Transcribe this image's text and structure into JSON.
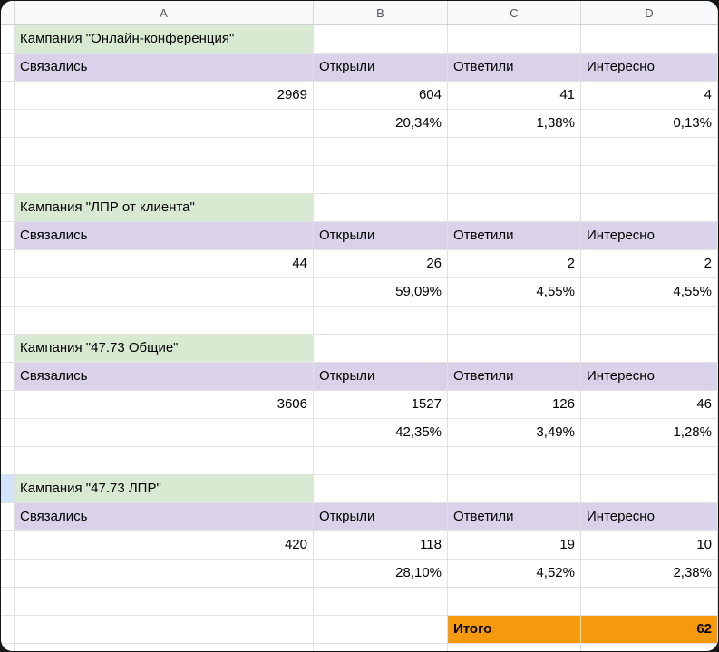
{
  "column_headers": [
    "A",
    "B",
    "C",
    "D"
  ],
  "colors": {
    "green": "#d9ead3",
    "lavender": "#d9d2e9",
    "orange": "#f6990d",
    "header_bg": "#f8f9fa",
    "grid_line": "#e2e2e2",
    "gutter_highlight": "#d2e3fc"
  },
  "rows": [
    {
      "cells": [
        {
          "t": "Кампания \"Онлайн-конференция\"",
          "bg": "green",
          "name": "campaign-title-cell"
        },
        {},
        {},
        {}
      ]
    },
    {
      "cells": [
        {
          "t": "Связались",
          "bg": "lavender",
          "name": "metric-header-cell"
        },
        {
          "t": "Открыли",
          "bg": "lavender",
          "name": "metric-header-cell"
        },
        {
          "t": "Ответили",
          "bg": "lavender",
          "name": "metric-header-cell"
        },
        {
          "t": "Интересно",
          "bg": "lavender",
          "name": "metric-header-cell"
        }
      ]
    },
    {
      "cells": [
        {
          "t": "2969",
          "align": "right",
          "name": "metric-value-cell"
        },
        {
          "t": "604",
          "align": "right",
          "name": "metric-value-cell"
        },
        {
          "t": "41",
          "align": "right",
          "name": "metric-value-cell"
        },
        {
          "t": "4",
          "align": "right",
          "name": "metric-value-cell"
        }
      ]
    },
    {
      "cells": [
        {},
        {
          "t": "20,34%",
          "align": "right",
          "name": "metric-percent-cell"
        },
        {
          "t": "1,38%",
          "align": "right",
          "name": "metric-percent-cell"
        },
        {
          "t": "0,13%",
          "align": "right",
          "name": "metric-percent-cell"
        }
      ]
    },
    {
      "cells": [
        {},
        {},
        {},
        {}
      ]
    },
    {
      "cells": [
        {},
        {},
        {},
        {}
      ]
    },
    {
      "cells": [
        {
          "t": "Кампания \"ЛПР от клиента\"",
          "bg": "green",
          "name": "campaign-title-cell"
        },
        {},
        {},
        {}
      ]
    },
    {
      "cells": [
        {
          "t": "Связались",
          "bg": "lavender",
          "name": "metric-header-cell"
        },
        {
          "t": "Открыли",
          "bg": "lavender",
          "name": "metric-header-cell"
        },
        {
          "t": "Ответили",
          "bg": "lavender",
          "name": "metric-header-cell"
        },
        {
          "t": "Интересно",
          "bg": "lavender",
          "name": "metric-header-cell"
        }
      ]
    },
    {
      "cells": [
        {
          "t": "44",
          "align": "right",
          "name": "metric-value-cell"
        },
        {
          "t": "26",
          "align": "right",
          "name": "metric-value-cell"
        },
        {
          "t": "2",
          "align": "right",
          "name": "metric-value-cell"
        },
        {
          "t": "2",
          "align": "right",
          "name": "metric-value-cell"
        }
      ]
    },
    {
      "cells": [
        {},
        {
          "t": "59,09%",
          "align": "right",
          "name": "metric-percent-cell"
        },
        {
          "t": "4,55%",
          "align": "right",
          "name": "metric-percent-cell"
        },
        {
          "t": "4,55%",
          "align": "right",
          "name": "metric-percent-cell"
        }
      ]
    },
    {
      "cells": [
        {},
        {},
        {},
        {}
      ]
    },
    {
      "cells": [
        {
          "t": "Кампания \"47.73 Общие\"",
          "bg": "green",
          "name": "campaign-title-cell"
        },
        {},
        {},
        {}
      ]
    },
    {
      "cells": [
        {
          "t": "Связались",
          "bg": "lavender",
          "name": "metric-header-cell"
        },
        {
          "t": "Открыли",
          "bg": "lavender",
          "name": "metric-header-cell"
        },
        {
          "t": "Ответили",
          "bg": "lavender",
          "name": "metric-header-cell"
        },
        {
          "t": "Интересно",
          "bg": "lavender",
          "name": "metric-header-cell"
        }
      ]
    },
    {
      "cells": [
        {
          "t": "3606",
          "align": "right",
          "name": "metric-value-cell"
        },
        {
          "t": "1527",
          "align": "right",
          "name": "metric-value-cell"
        },
        {
          "t": "126",
          "align": "right",
          "name": "metric-value-cell"
        },
        {
          "t": "46",
          "align": "right",
          "name": "metric-value-cell"
        }
      ]
    },
    {
      "cells": [
        {},
        {
          "t": "42,35%",
          "align": "right",
          "name": "metric-percent-cell"
        },
        {
          "t": "3,49%",
          "align": "right",
          "name": "metric-percent-cell"
        },
        {
          "t": "1,28%",
          "align": "right",
          "name": "metric-percent-cell"
        }
      ]
    },
    {
      "cells": [
        {},
        {},
        {},
        {}
      ]
    },
    {
      "gutter": "highlight",
      "cells": [
        {
          "t": "Кампания \"47.73 ЛПР\"",
          "bg": "green",
          "name": "campaign-title-cell"
        },
        {},
        {},
        {}
      ]
    },
    {
      "cells": [
        {
          "t": "Связались",
          "bg": "lavender",
          "name": "metric-header-cell"
        },
        {
          "t": "Открыли",
          "bg": "lavender",
          "name": "metric-header-cell"
        },
        {
          "t": "Ответили",
          "bg": "lavender",
          "name": "metric-header-cell"
        },
        {
          "t": "Интересно",
          "bg": "lavender",
          "name": "metric-header-cell"
        }
      ]
    },
    {
      "cells": [
        {
          "t": "420",
          "align": "right",
          "name": "metric-value-cell"
        },
        {
          "t": "118",
          "align": "right",
          "name": "metric-value-cell"
        },
        {
          "t": "19",
          "align": "right",
          "name": "metric-value-cell"
        },
        {
          "t": "10",
          "align": "right",
          "name": "metric-value-cell"
        }
      ]
    },
    {
      "cells": [
        {},
        {
          "t": "28,10%",
          "align": "right",
          "name": "metric-percent-cell"
        },
        {
          "t": "4,52%",
          "align": "right",
          "name": "metric-percent-cell"
        },
        {
          "t": "2,38%",
          "align": "right",
          "name": "metric-percent-cell"
        }
      ]
    },
    {
      "cells": [
        {},
        {},
        {},
        {}
      ]
    },
    {
      "cells": [
        {},
        {},
        {
          "t": "Итого",
          "bg": "orange",
          "bold": true,
          "name": "total-label-cell"
        },
        {
          "t": "62",
          "bg": "orange",
          "bold": true,
          "align": "right",
          "name": "total-value-cell"
        }
      ]
    },
    {
      "cells": [
        {},
        {},
        {},
        {}
      ]
    }
  ]
}
